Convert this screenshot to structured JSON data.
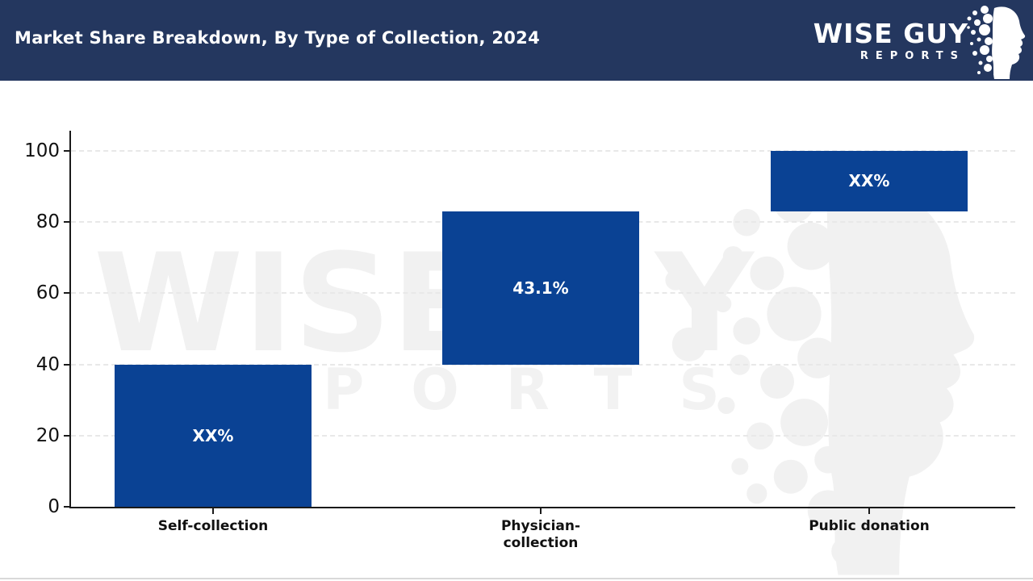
{
  "header": {
    "title": "Market Share Breakdown, By Type of Collection, 2024",
    "logo": {
      "line1": "WISE GUY",
      "line2": "REPORTS"
    },
    "bg_color": "#24375f"
  },
  "watermark": {
    "line1_left": "WISE G",
    "line1_right": "Y",
    "line2": "PORTS"
  },
  "chart_data": {
    "type": "bar",
    "variant": "waterfall-floating-bars",
    "title": "Market Share Breakdown, By Type of Collection, 2024",
    "categories": [
      "Self-collection",
      "Physician-collection",
      "Public donation"
    ],
    "categories_display": [
      [
        "Self-collection"
      ],
      [
        "Physician-",
        "collection"
      ],
      [
        "Public donation"
      ]
    ],
    "segments": [
      {
        "category": "Self-collection",
        "start": 0,
        "end": 40,
        "label": "XX%"
      },
      {
        "category": "Physician-collection",
        "start": 40,
        "end": 83.1,
        "label": "43.1%"
      },
      {
        "category": "Public donation",
        "start": 83.1,
        "end": 100,
        "label": "XX%"
      }
    ],
    "bar_color": "#0a4294",
    "label_color": "#ffffff",
    "xlabel": "",
    "ylabel": "",
    "ylim": [
      0,
      100
    ],
    "yticks": [
      0,
      20,
      40,
      60,
      80,
      100
    ],
    "grid": "horizontal-dashed",
    "legend": "none"
  }
}
